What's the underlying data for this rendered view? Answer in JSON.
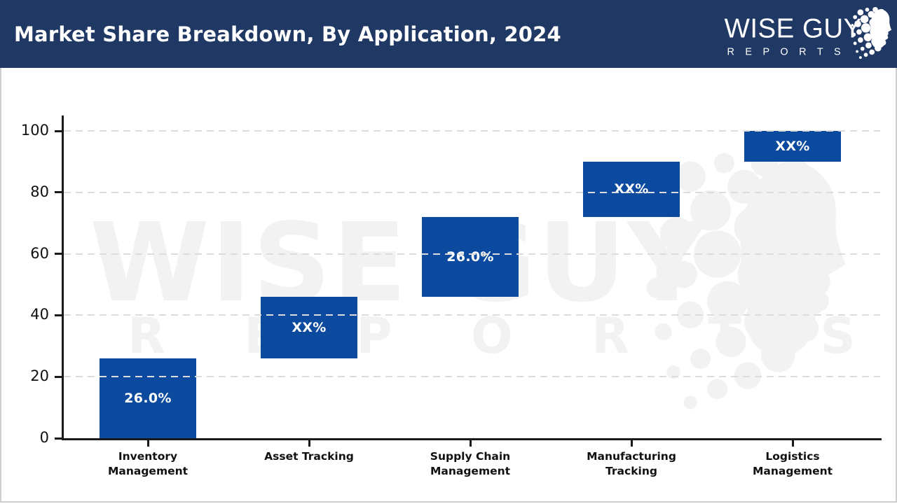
{
  "header": {
    "title": "Market Share Breakdown, By Application, 2024",
    "logo": {
      "brand_top": "WISE GUY",
      "brand_bottom": "R E P O R T S"
    }
  },
  "watermark": {
    "line1": "WISE GUY",
    "line2": "R E P O R T S"
  },
  "colors": {
    "header_bg": "#1f3864",
    "bar": "#0b4a9e",
    "bar_label": "#ffffff",
    "grid": "#dcdcdc",
    "axis": "#1a1a1a",
    "watermark": "#f2f2f2"
  },
  "chart_data": {
    "type": "bar",
    "variant": "waterfall",
    "title": "Market Share Breakdown, By Application, 2024",
    "categories": [
      "Inventory Management",
      "Asset Tracking",
      "Supply Chain Management",
      "Manufacturing Tracking",
      "Logistics Management"
    ],
    "category_lines": [
      [
        "Inventory",
        "Management"
      ],
      [
        "Asset Tracking"
      ],
      [
        "Supply Chain",
        "Management"
      ],
      [
        "Manufacturing",
        "Tracking"
      ],
      [
        "Logistics",
        "Management"
      ]
    ],
    "segments": [
      {
        "category": "Inventory Management",
        "start": 0,
        "end": 26,
        "label": "26.0%"
      },
      {
        "category": "Asset Tracking",
        "start": 26,
        "end": 46,
        "label": "XX%"
      },
      {
        "category": "Supply Chain Management",
        "start": 46,
        "end": 72,
        "label": "26.0%"
      },
      {
        "category": "Manufacturing Tracking",
        "start": 72,
        "end": 90,
        "label": "XX%"
      },
      {
        "category": "Logistics Management",
        "start": 90,
        "end": 100,
        "label": "XX%"
      }
    ],
    "yticks": [
      0,
      20,
      40,
      60,
      80,
      100
    ],
    "ylim": [
      0,
      100
    ],
    "xlabel": "",
    "ylabel": "",
    "grid": "horizontal-dashed",
    "legend": "none"
  }
}
